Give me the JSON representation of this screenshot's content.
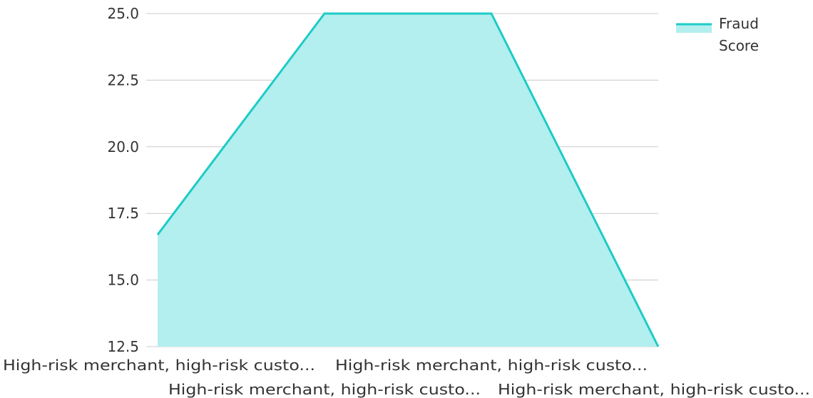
{
  "chart_data": {
    "type": "area",
    "categories": [
      "High-risk merchant, high-risk custo...",
      "High-risk merchant, high-risk custo...",
      "High-risk merchant, high-risk custo...",
      "High-risk merchant, high-risk custo..."
    ],
    "series": [
      {
        "name": "Fraud Score",
        "name_lines": [
          "Fraud",
          "Score"
        ],
        "values": [
          16.7,
          25.0,
          25.0,
          12.5
        ]
      }
    ],
    "title": "",
    "xlabel": "",
    "ylabel": "",
    "ylim": [
      12.5,
      25.0
    ],
    "y_ticks": [
      "12.5",
      "15.0",
      "17.5",
      "20.0",
      "22.5",
      "25.0"
    ],
    "grid": true,
    "legend_position": "top-right",
    "colors": {
      "line": "#1ecbc7",
      "fill": "#b2efee",
      "grid": "#cccccc",
      "text": "#333333"
    }
  }
}
